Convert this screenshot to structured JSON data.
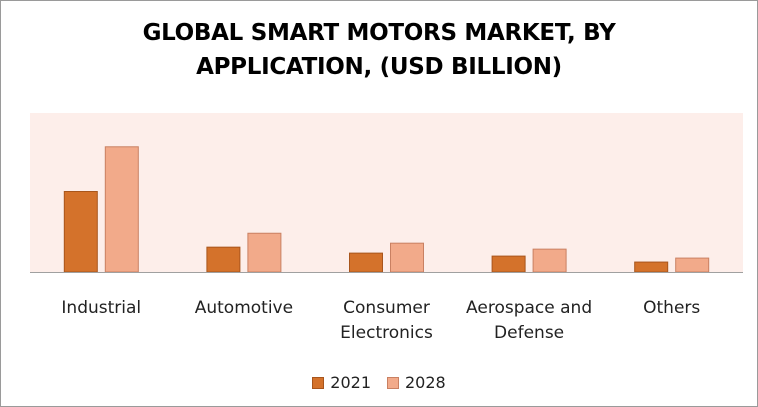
{
  "chart_data": {
    "type": "bar",
    "title": "GLOBAL SMART MOTORS MARKET, BY\nAPPLICATION, (USD BILLION)",
    "xlabel": "",
    "ylabel": "",
    "categories": [
      "Industrial",
      "Automotive",
      "Consumer\nElectronics",
      "Aerospace and\nDefense",
      "Others"
    ],
    "series": [
      {
        "name": "2021",
        "values": [
          8.1,
          2.5,
          1.9,
          1.6,
          1.0
        ],
        "color": "#d4722b"
      },
      {
        "name": "2028",
        "values": [
          12.6,
          3.9,
          2.9,
          2.3,
          1.4
        ],
        "color": "#f2aa8a"
      }
    ],
    "ylim": [
      0,
      16
    ],
    "grid": false,
    "legend": "bottom",
    "plot_background": "#fdeeea"
  }
}
